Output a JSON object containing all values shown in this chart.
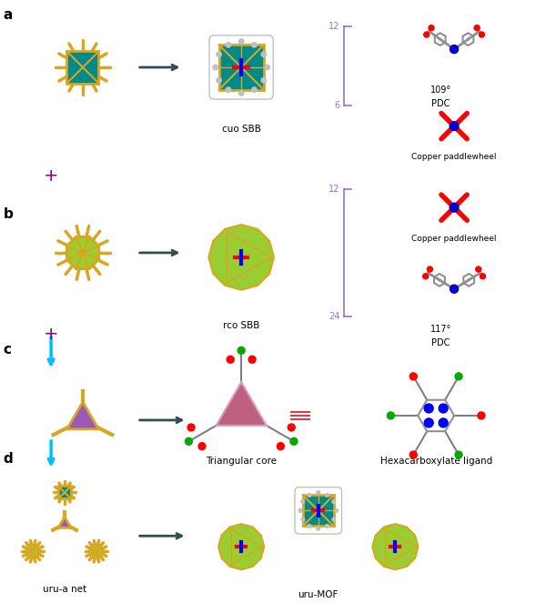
{
  "title": "",
  "background_color": "#ffffff",
  "fig_width": 6.0,
  "fig_height": 6.63,
  "labels": {
    "a": "a",
    "b": "b",
    "c": "c",
    "d": "d"
  },
  "annotations": {
    "cuo_SBB": "cuo SBB",
    "rco_SBB": "rco SBB",
    "triangular_core": "Triangular core",
    "hexacarboxylate": "Hexacarboxylate ligand",
    "uru_a_net": "uru-a net",
    "uru_MOF": "uru-MOF",
    "PDC_109": "109°\nPDC",
    "copper_paddlewheel_1": "Copper paddlewheel",
    "copper_paddlewheel_2": "Copper paddlewheel",
    "PDC_117": "117°\nPDC",
    "plus_1": "+",
    "plus_2": "+"
  },
  "bracket_numbers": {
    "a_top": "12",
    "a_bottom": "6",
    "b_top": "12",
    "b_bottom": "24"
  },
  "colors": {
    "yellow": "#DAA520",
    "yellow_green": "#9ACD32",
    "teal": "#008B8B",
    "purple_text": "#8B008B",
    "arrow_color": "#2F4F4F",
    "cyan_arrow": "#00BFFF",
    "bracket_color": "#9370DB",
    "red": "#FF0000",
    "blue": "#0000CD",
    "gray": "#808080",
    "dark_gray": "#404040",
    "green": "#00AA00",
    "pink": "#DDA0DD",
    "magenta": "#FF00FF",
    "orange_red": "#FF4500"
  }
}
